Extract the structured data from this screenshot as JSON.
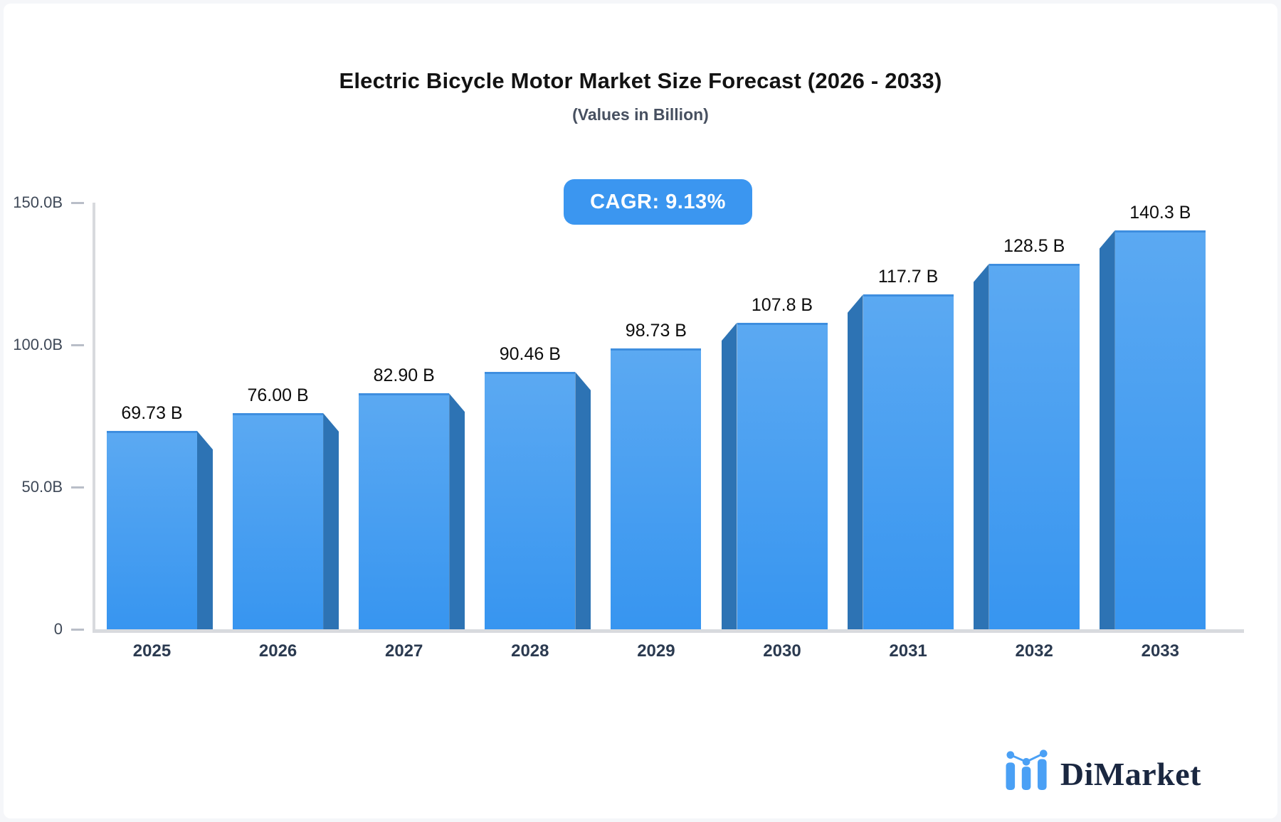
{
  "title": "Electric Bicycle Motor Market Size Forecast (2026 - 2033)",
  "subtitle": "(Values in Billion)",
  "badge": {
    "label": "CAGR: 9.13%"
  },
  "logo": {
    "text": "DiMarket"
  },
  "colors": {
    "badge_bg": "#3b96f0",
    "bar_top": "#5ba9f2",
    "bar_bottom": "#3795f0",
    "bar_top_line": "#3e8edf",
    "bar_side": "#2d73b4",
    "axis_line": "#d8dade",
    "logo_blue": "#4aa0f5",
    "logo_navy": "#1a2740"
  },
  "chart_data": {
    "type": "bar",
    "title": "Electric Bicycle Motor Market Size Forecast (2026 - 2033)",
    "subtitle": "(Values in Billion)",
    "annotation": "CAGR: 9.13%",
    "categories": [
      "2025",
      "2026",
      "2027",
      "2028",
      "2029",
      "2030",
      "2031",
      "2032",
      "2033"
    ],
    "values": [
      69.73,
      76.0,
      82.9,
      90.46,
      98.73,
      107.8,
      117.7,
      128.5,
      140.3
    ],
    "value_labels": [
      "69.73 B",
      "76.00 B",
      "82.90 B",
      "90.46 B",
      "98.73 B",
      "107.8 B",
      "117.7 B",
      "128.5 B",
      "140.3 B"
    ],
    "xlabel": "",
    "ylabel": "",
    "ylim": [
      0,
      150
    ],
    "y_ticks": [
      {
        "label": "150.0B",
        "value": 150
      },
      {
        "label": "100.0B",
        "value": 100
      },
      {
        "label": "50.0B",
        "value": 50
      },
      {
        "label": "0",
        "value": 0
      }
    ],
    "grid": false,
    "legend": "none",
    "style": "3d-bars, side shading faces center bar"
  }
}
